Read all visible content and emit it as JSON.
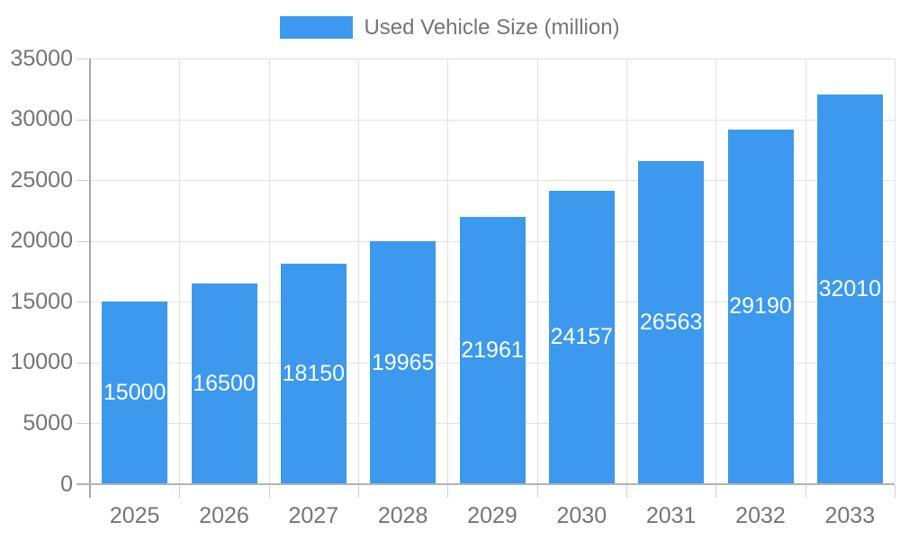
{
  "chart_data": {
    "type": "bar",
    "title": "Used Vehicle Size (million)",
    "categories": [
      "2025",
      "2026",
      "2027",
      "2028",
      "2029",
      "2030",
      "2031",
      "2032",
      "2033"
    ],
    "series": [
      {
        "name": "Used Vehicle Size (million)",
        "values": [
          15000,
          16500,
          18150,
          19965,
          21961,
          24157,
          26563,
          29190,
          32010
        ]
      }
    ],
    "value_labels": [
      "15000",
      "16500",
      "18150",
      "19965",
      "21961",
      "24157",
      "26563",
      "29190",
      "32010"
    ],
    "xlabel": "",
    "ylabel": "",
    "ylim": [
      0,
      35000
    ],
    "yticks": [
      0,
      5000,
      10000,
      15000,
      20000,
      25000,
      30000,
      35000
    ],
    "grid": true,
    "legend_position": "top-center",
    "value_label_position": "inside-center"
  },
  "legend": {
    "label": "Used Vehicle Size (million)",
    "swatch_color": "#3C99EE"
  },
  "colors": {
    "bar": "#3C99EE",
    "grid": "#e2e2e2",
    "axis": "#a8a8a8",
    "tick": "#cfcfcf",
    "text": "#757575",
    "value_label": "#ffffff",
    "background": "#ffffff"
  }
}
